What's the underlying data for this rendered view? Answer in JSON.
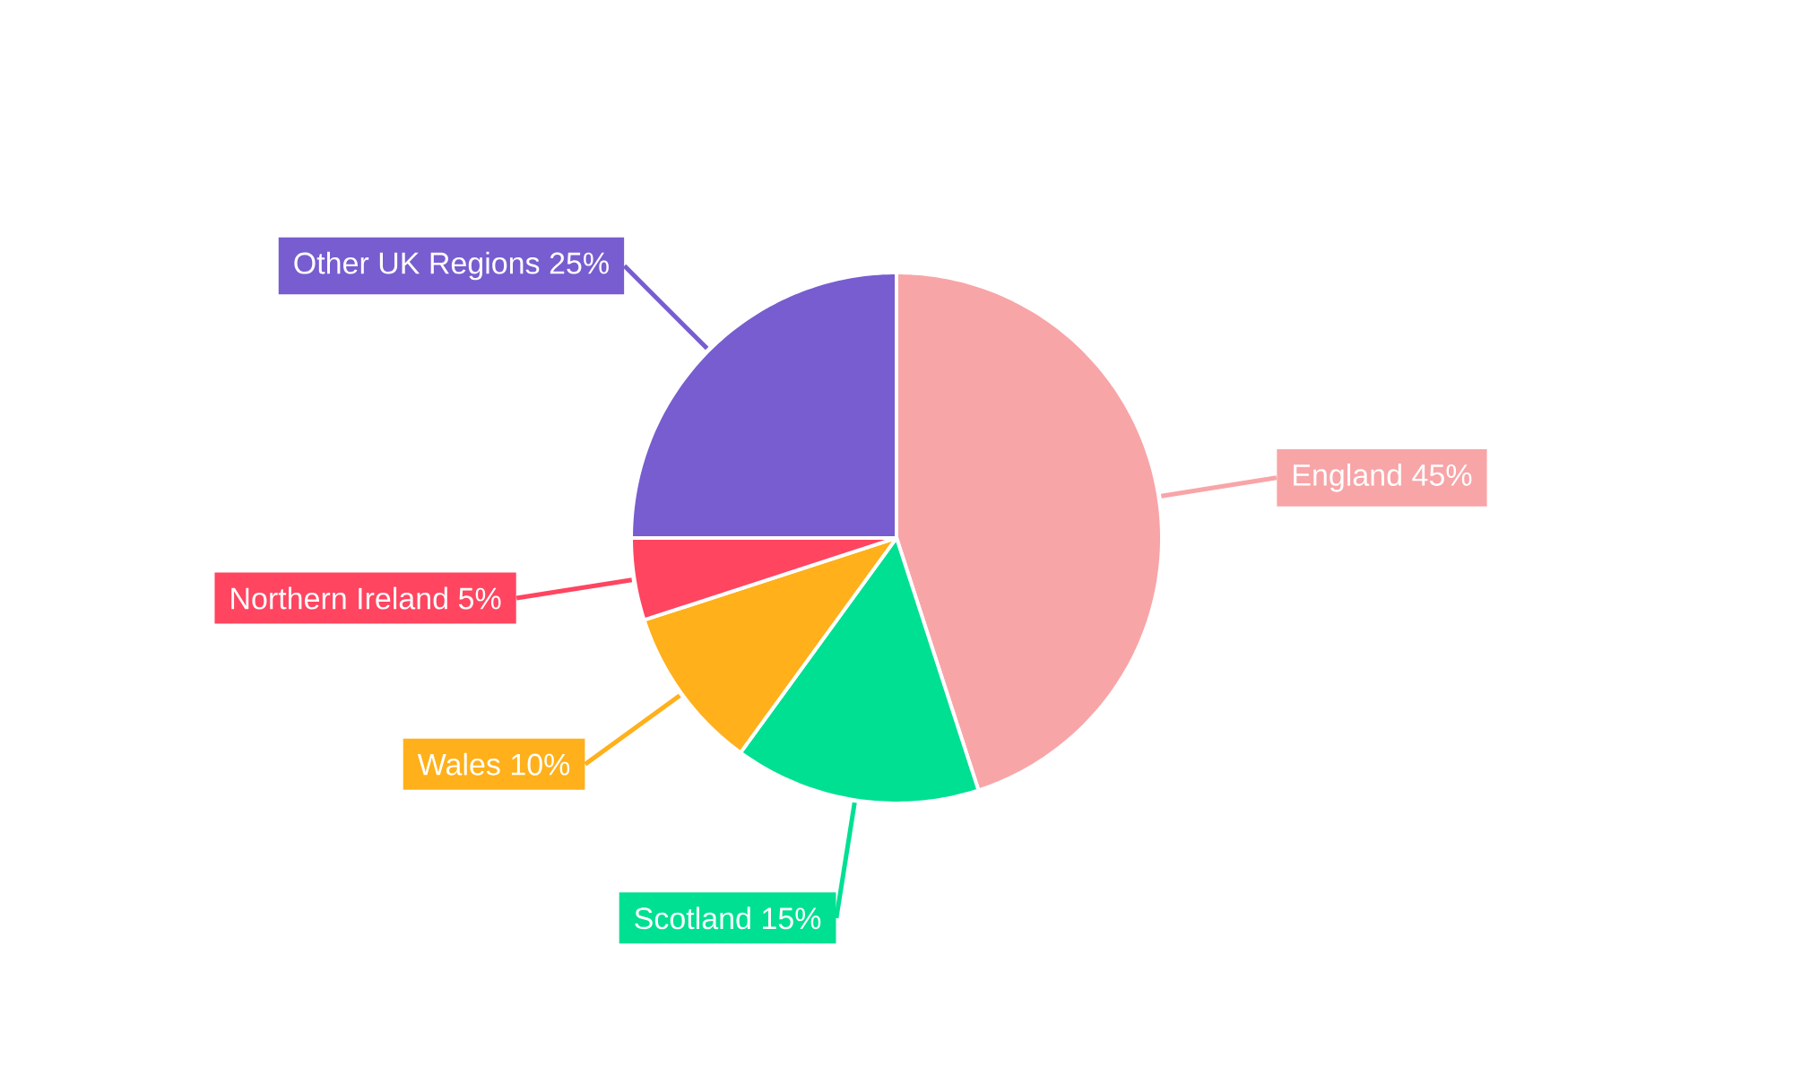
{
  "chart_data": {
    "type": "pie",
    "categories": [
      "England",
      "Scotland",
      "Wales",
      "Northern Ireland",
      "Other UK Regions"
    ],
    "values": [
      45,
      15,
      10,
      5,
      25
    ],
    "value_labels": [
      "45%",
      "15%",
      "10%",
      "5%",
      "25%"
    ],
    "colors": [
      "#f8a5a8",
      "#00e092",
      "#ffb01a",
      "#ff4560",
      "#775dd0"
    ]
  }
}
